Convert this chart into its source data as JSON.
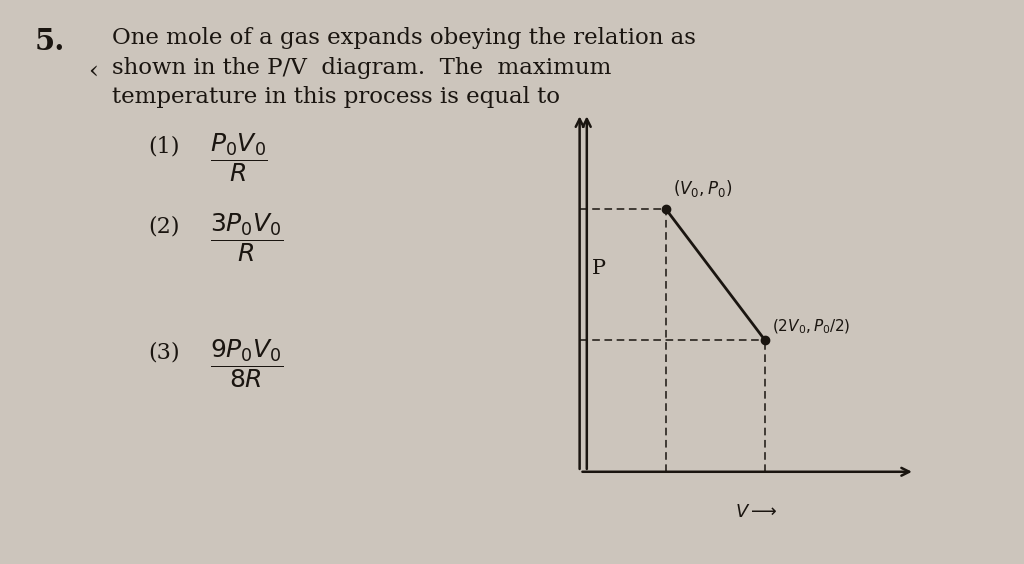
{
  "background_color": "#ccc5bc",
  "question_number": "5.",
  "question_text_line1": "One mole of a gas expands obeying the relation as",
  "question_text_line2": "shown in the P/V  diagram.  The  maximum",
  "question_text_line3": "temperature in this process is equal to",
  "options": [
    {
      "num": "(1)",
      "numer": "$\\dfrac{P_0V_0}{R}$"
    },
    {
      "num": "(2)",
      "numer": "$\\dfrac{3P_0V_0}{R}$"
    },
    {
      "num": "(3)",
      "numer": "$\\dfrac{9P_0V_0}{8R}$"
    }
  ],
  "diagram": {
    "point1_label": "$(V_0,P_0)$",
    "point2_label": "$(2V_0,P_0/2)$",
    "xlabel": "$V \\longrightarrow$",
    "ylabel": "P"
  },
  "text_color": "#1a1510",
  "diagram_color": "#1a1510"
}
